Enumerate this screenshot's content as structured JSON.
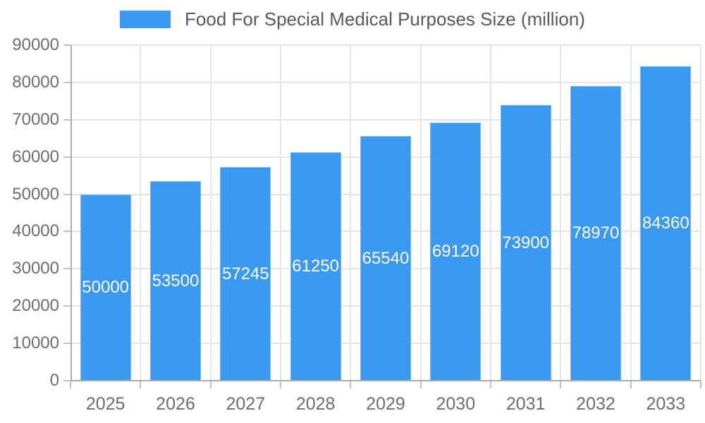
{
  "legend": {
    "label": "Food For Special Medical Purposes Size (million)"
  },
  "chart_data": {
    "type": "bar",
    "title": "Food For Special Medical Purposes Size (million)",
    "categories": [
      "2025",
      "2026",
      "2027",
      "2028",
      "2029",
      "2030",
      "2031",
      "2032",
      "2033"
    ],
    "values": [
      50000,
      53500,
      57245,
      61250,
      65540,
      69120,
      73900,
      78970,
      84360
    ],
    "xlabel": "",
    "ylabel": "",
    "ylim": [
      0,
      90000
    ],
    "yticks": [
      0,
      10000,
      20000,
      30000,
      40000,
      50000,
      60000,
      70000,
      80000,
      90000
    ],
    "grid": true,
    "legend_position": "top-center",
    "value_labels": "inside-center"
  },
  "colors": {
    "bar": "#3b99f0",
    "bar_value_label": "#ffffff",
    "grid_line": "#e4e4e4",
    "axis_line": "#adadad",
    "tick_mark": "#c2c2c2",
    "axis_text": "#6e6e6e",
    "legend_text": "#595959",
    "background": "#ffffff"
  }
}
